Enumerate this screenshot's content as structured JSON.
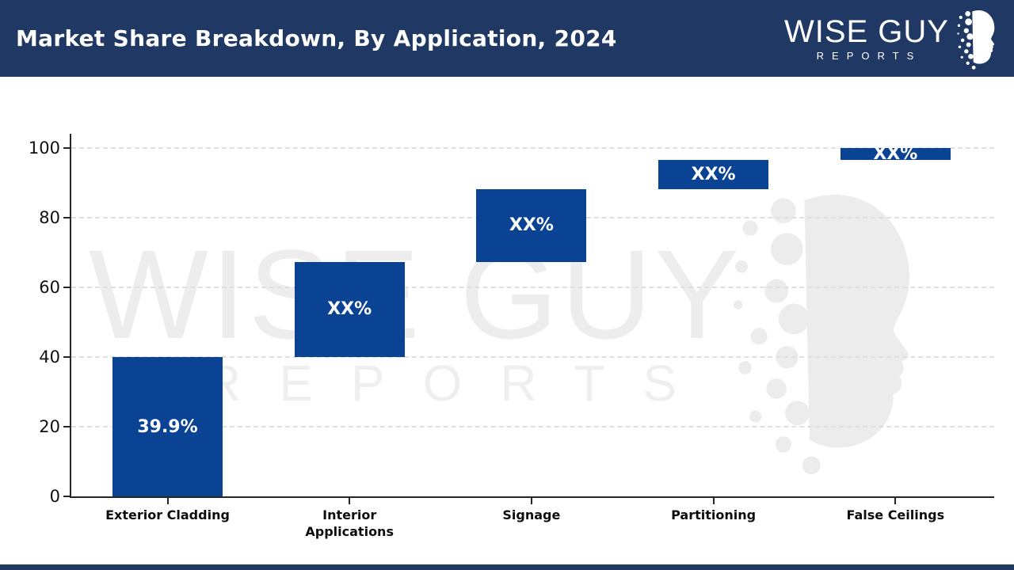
{
  "header": {
    "title": "Market Share Breakdown, By Application, 2024",
    "bg_color": "#203864",
    "logo": {
      "name": "WISE GUY",
      "sub": "REPORTS",
      "icon": "dotted-head-icon"
    }
  },
  "watermark": {
    "name": "WISE GUY",
    "sub": "REPORTS",
    "icon": "dotted-head-icon"
  },
  "chart_data": {
    "type": "bar",
    "subtype": "floating-waterfall-bars",
    "title": "Market Share Breakdown, By Application, 2024",
    "categories": [
      "Exterior Cladding",
      "Interior\nApplications",
      "Signage",
      "Partitioning",
      "False Ceilings"
    ],
    "series": [
      {
        "name": "Market share (%)",
        "segments": [
          {
            "category": "Exterior Cladding",
            "start": 0,
            "end": 40,
            "label": "39.9%"
          },
          {
            "category": "Interior Applications",
            "start": 40,
            "end": 67.3,
            "label": "XX%"
          },
          {
            "category": "Signage",
            "start": 67.3,
            "end": 88.2,
            "label": "XX%"
          },
          {
            "category": "Partitioning",
            "start": 88.2,
            "end": 96.5,
            "label": "XX%"
          },
          {
            "category": "False Ceilings",
            "start": 96.5,
            "end": 100,
            "label": "XX%"
          }
        ]
      }
    ],
    "xlabel": "",
    "ylabel": "",
    "ylim": [
      0,
      104
    ],
    "yticks": [
      0,
      20,
      40,
      60,
      80,
      100
    ],
    "grid": "horizontal-dashed",
    "legend": "none",
    "bar_color": "#0a4294",
    "bar_label_color": "#ffffff",
    "axis_color": "#262626",
    "grid_color": "#dfdfdf"
  },
  "footer": {
    "bg_color": "#203864"
  }
}
